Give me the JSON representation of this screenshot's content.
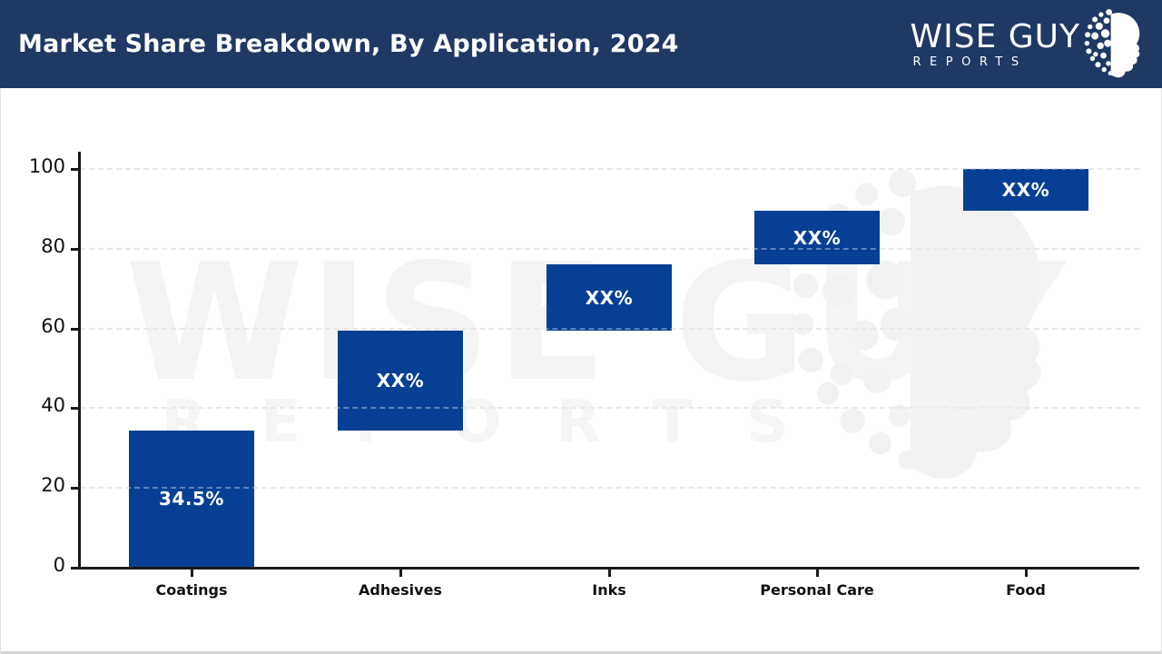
{
  "header": {
    "title": "Market Share Breakdown, By Application, 2024",
    "bg_color": "#1f3864",
    "logo": {
      "line1": "WISE GUY",
      "line2": "REPORTS"
    }
  },
  "watermark": {
    "line1": "WISE GUY",
    "line2": "REPORTS"
  },
  "chart_data": {
    "type": "bar",
    "subtype": "waterfall",
    "title": "Market Share Breakdown, By Application, 2024",
    "categories": [
      "Coatings",
      "Adhesives",
      "Inks",
      "Personal Care",
      "Food"
    ],
    "segments": [
      {
        "category": "Coatings",
        "start": 0,
        "end": 34.5,
        "label": "34.5%"
      },
      {
        "category": "Adhesives",
        "start": 34.5,
        "end": 59.5,
        "label": "XX%"
      },
      {
        "category": "Inks",
        "start": 59.5,
        "end": 76,
        "label": "XX%"
      },
      {
        "category": "Personal Care",
        "start": 76,
        "end": 89.5,
        "label": "XX%"
      },
      {
        "category": "Food",
        "start": 89.5,
        "end": 100,
        "label": "XX%"
      }
    ],
    "yticks": [
      0,
      20,
      40,
      60,
      80,
      100
    ],
    "ylim": [
      0,
      100
    ],
    "xlabel": "",
    "ylabel": "",
    "grid": "dashed horizontal gridlines",
    "legend": "none",
    "bar_color": "#063f94",
    "value_label_color": "#ffffff",
    "axis_color": "#1a1a1a"
  }
}
